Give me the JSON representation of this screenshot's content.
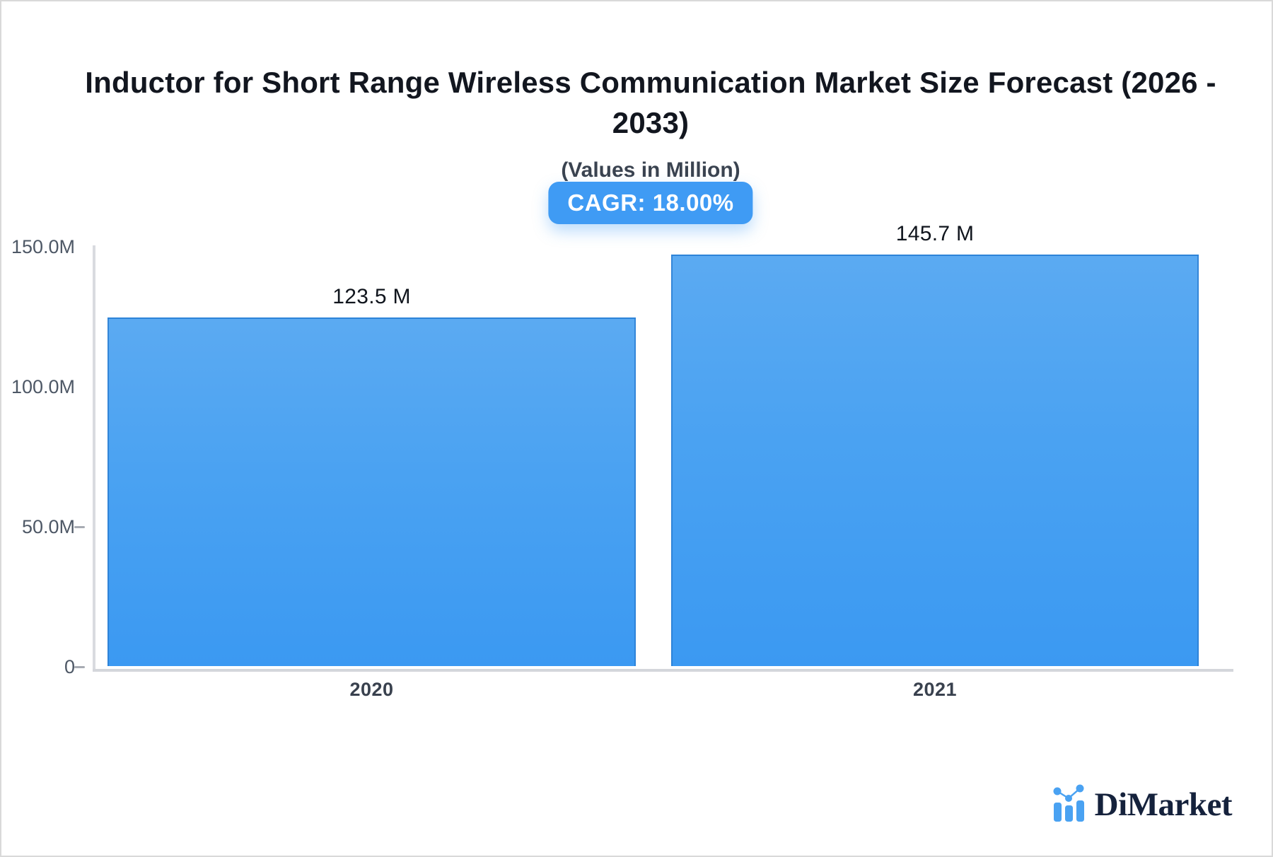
{
  "chart_data": {
    "type": "bar",
    "title": "Inductor for Short Range Wireless Communication Market Size Forecast (2026 - 2033)",
    "title_lines": [
      "Inductor for Short Range Wireless Communication Market Size Forecast (2026 -",
      "2033)"
    ],
    "subtitle": "(Values in Million)",
    "badge_label": "CAGR: 18.00%",
    "categories": [
      "2020",
      "2021"
    ],
    "values": [
      123.5,
      145.7
    ],
    "value_labels": [
      "123.5 M",
      "145.7 M"
    ],
    "series_name": "Market Size",
    "unit": "Million",
    "ylim": [
      0,
      150
    ],
    "yticks": [
      "150.0M",
      "100.0M",
      "50.0M",
      "0"
    ],
    "ytick_values": [
      150,
      100,
      50,
      0
    ],
    "grid": false,
    "legend_position": "none"
  },
  "colors": {
    "bar_gradient_top": "#5baaf2",
    "bar_gradient_bottom": "#3b99f2",
    "bar_border": "#2b7dd1",
    "badge_background": "#3f9bf4",
    "badge_text": "#ffffff",
    "axis_line": "#d9dbe0",
    "title_text": "#12161f",
    "tick_text": "#4e5866",
    "brand_text": "#15223c",
    "brand_icon_blue": "#4aa2f2"
  },
  "branding": {
    "logo_text": "DiMarket",
    "logo_icon": "bar-line-chart-icon"
  }
}
